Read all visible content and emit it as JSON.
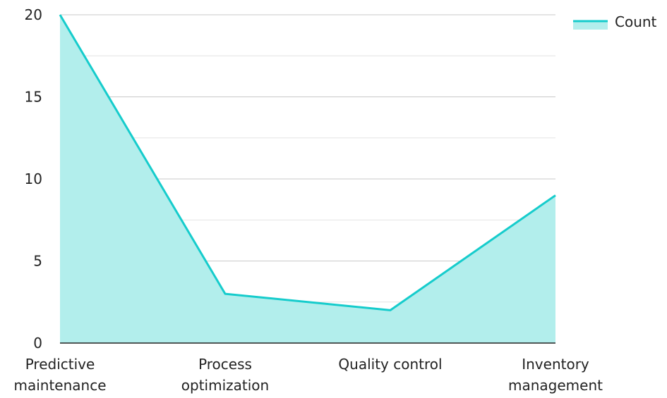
{
  "chart_data": {
    "type": "area",
    "categories": [
      [
        "Predictive",
        "maintenance"
      ],
      [
        "Process",
        "optimization"
      ],
      [
        "Quality control"
      ],
      [
        "Inventory",
        "management"
      ]
    ],
    "series": [
      {
        "name": "Count",
        "values": [
          20,
          3,
          2,
          9
        ]
      }
    ],
    "yticks": [
      "0",
      "5",
      "10",
      "15",
      "20"
    ],
    "ylim": [
      0,
      20
    ],
    "grid": true,
    "legend_position": "top-right",
    "colors": {
      "line": "#16cccc",
      "fill": "#b2eeec",
      "grid_major": "#c8c8c8",
      "grid_minor": "#e4e4e4",
      "axis": "#222222"
    }
  }
}
